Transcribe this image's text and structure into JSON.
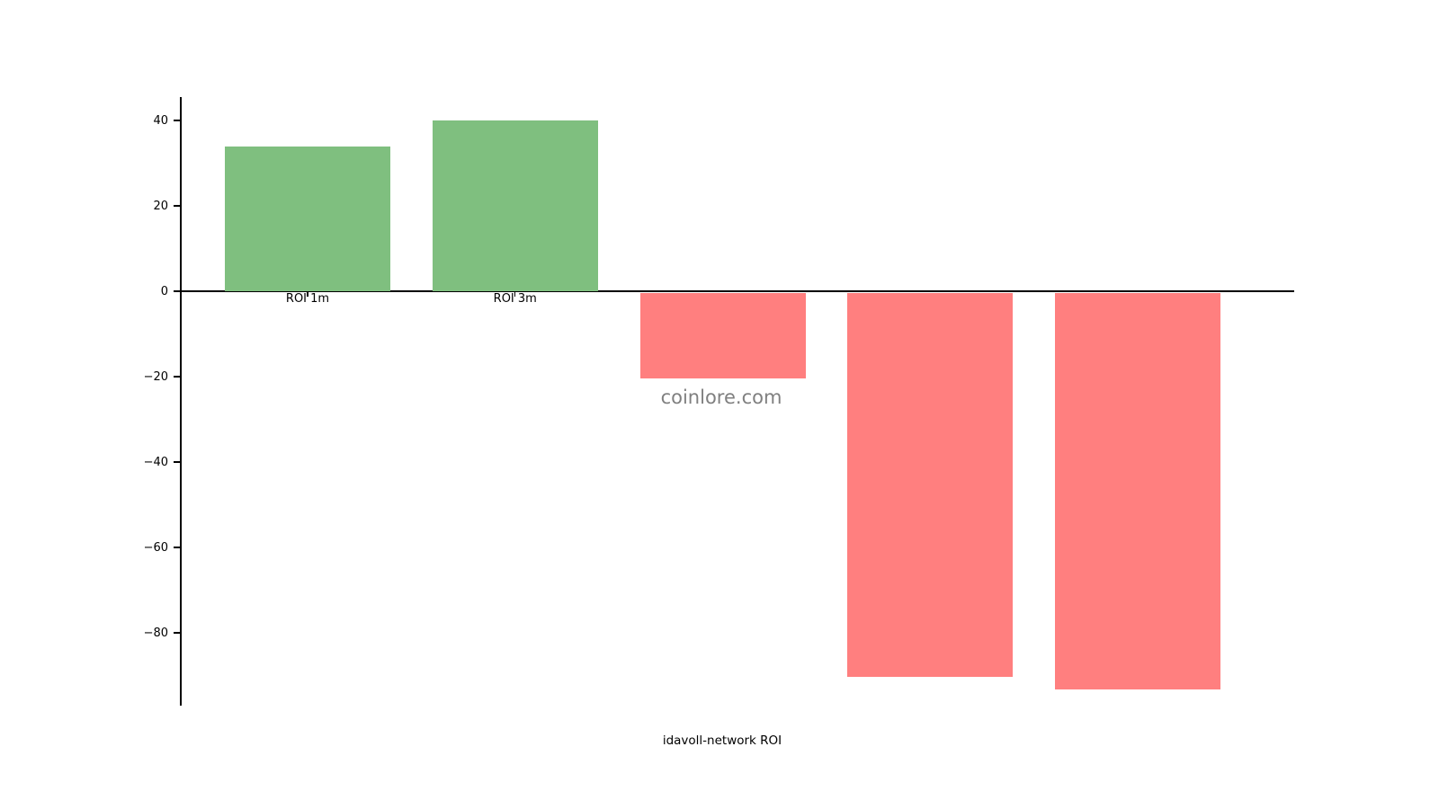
{
  "watermark": {
    "text": "coinlore.com",
    "color": "#808080"
  },
  "chart_data": {
    "type": "bar",
    "title": "",
    "xlabel": "idavoll-network ROI",
    "ylabel": "",
    "categories": [
      "ROI 1m",
      "ROI 3m",
      "",
      "",
      ""
    ],
    "values": [
      34,
      40,
      -20,
      -90,
      -93
    ],
    "bar_colors": [
      "#7fbf7f",
      "#7fbf7f",
      "#ff7f7f",
      "#ff7f7f",
      "#ff7f7f"
    ],
    "positive_color": "#7fbf7f",
    "negative_color": "#ff7f7f",
    "yticks": [
      {
        "label": "40",
        "value": 40
      },
      {
        "label": "20",
        "value": 20
      },
      {
        "label": "0",
        "value": 0
      },
      {
        "label": "−20",
        "value": -20
      },
      {
        "label": "−40",
        "value": -40
      },
      {
        "label": "−60",
        "value": -60
      },
      {
        "label": "−80",
        "value": -80
      }
    ],
    "ylim": [
      -97,
      45.5
    ],
    "grid": false,
    "legend": null,
    "axis_color": "#000000",
    "text_color": "#000000"
  }
}
